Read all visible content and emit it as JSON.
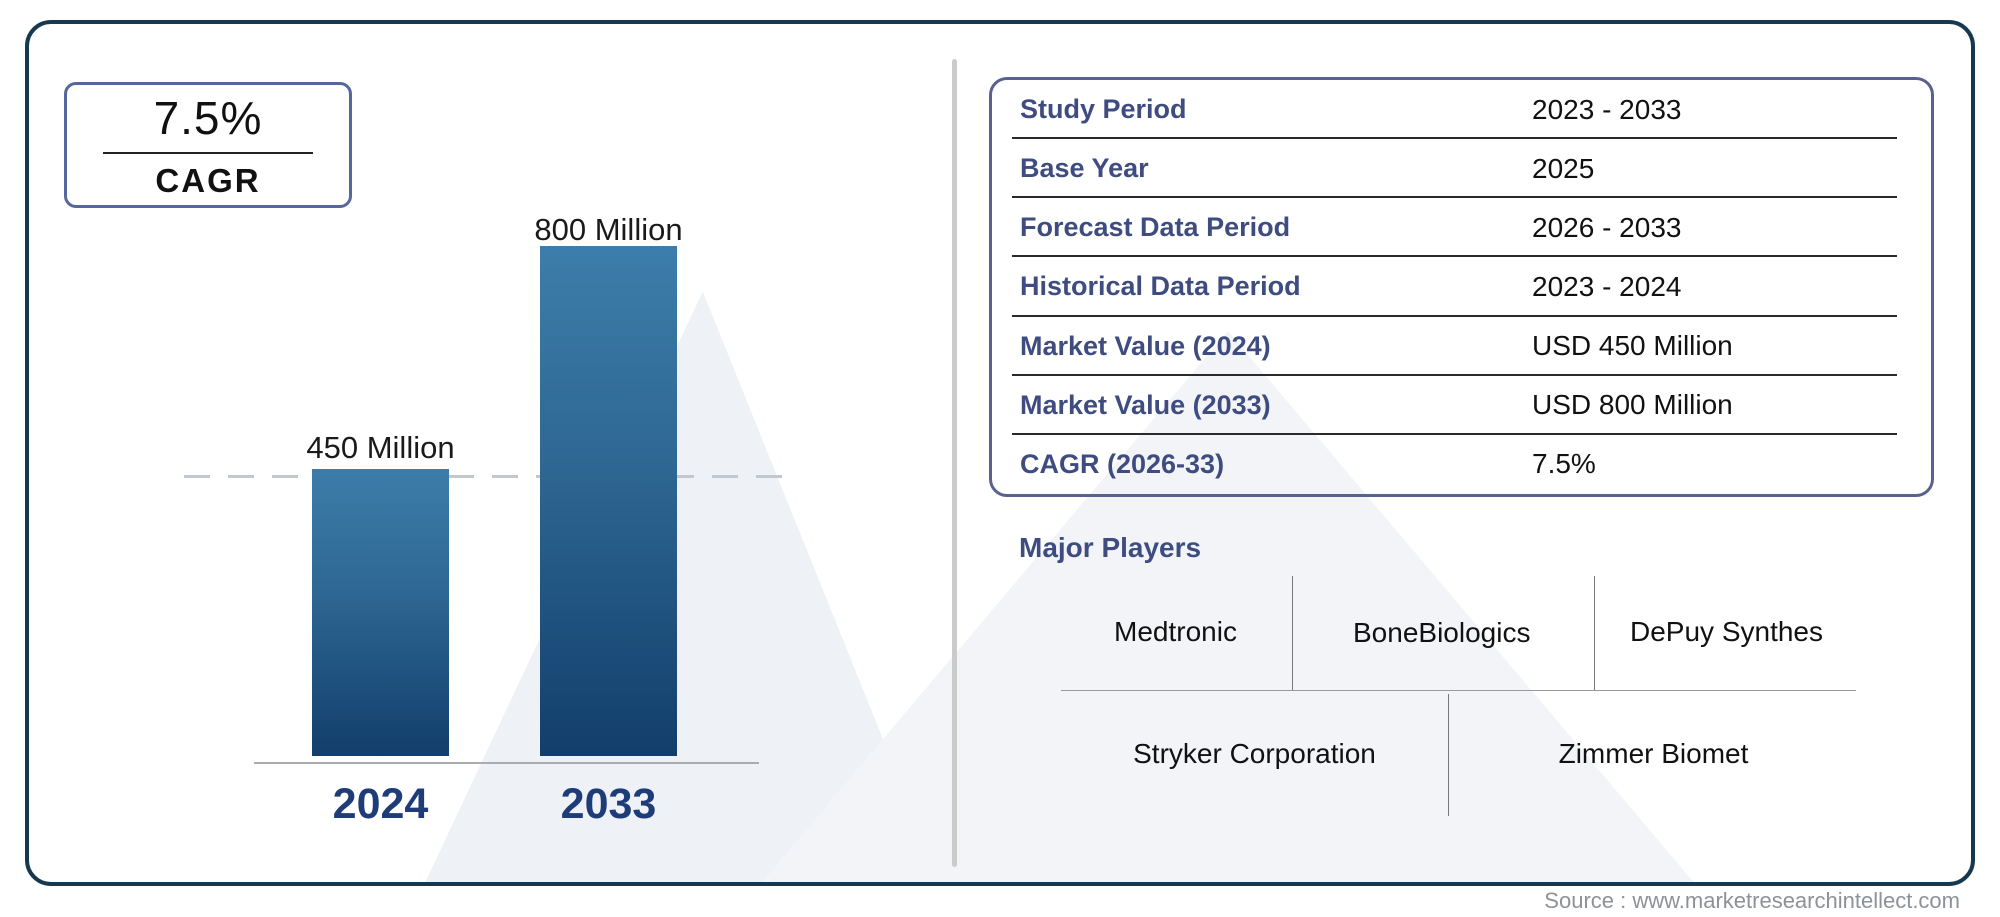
{
  "cagr_badge": {
    "value": "7.5%",
    "label": "CAGR"
  },
  "chart_data": {
    "type": "bar",
    "categories": [
      "2024",
      "2033"
    ],
    "values": [
      450,
      800
    ],
    "value_labels": [
      "450 Million",
      "800 Million"
    ],
    "title": "",
    "xlabel": "",
    "ylabel": "",
    "unit": "USD Million",
    "ylim": [
      0,
      800
    ],
    "reference_line_value": 450,
    "reference_line_style": "dashed",
    "grid": false,
    "legend": false,
    "bar_gradient_top": "#3d7dab",
    "bar_gradient_bottom": "#123e6b"
  },
  "info_table": {
    "rows": [
      {
        "label": "Study Period",
        "value": "2023 - 2033"
      },
      {
        "label": "Base Year",
        "value": "2025"
      },
      {
        "label": "Forecast Data Period",
        "value": "2026 - 2033"
      },
      {
        "label": "Historical Data Period",
        "value": "2023 - 2024"
      },
      {
        "label": "Market Value (2024)",
        "value": "USD 450 Million"
      },
      {
        "label": "Market Value (2033)",
        "value": "USD 800 Million"
      },
      {
        "label": "CAGR (2026-33)",
        "value": "7.5%"
      }
    ]
  },
  "major_players": {
    "title": "Major Players",
    "row1": [
      "Medtronic",
      "BoneBiologics",
      "DePuy Synthes"
    ],
    "row2": [
      "Stryker Corporation",
      "Zimmer Biomet"
    ]
  },
  "footer": {
    "source": "Source : www.marketresearchintellect.com"
  },
  "colors": {
    "outer_border": "#17394f",
    "badge_border": "#56679b",
    "table_border": "#59618f",
    "label_blue": "#3f4c80",
    "year_label_navy": "#1e3c78",
    "divider_gray": "#cbcbcb",
    "watermark_gray": "#eef1f6",
    "source_gray": "#8d9298"
  }
}
